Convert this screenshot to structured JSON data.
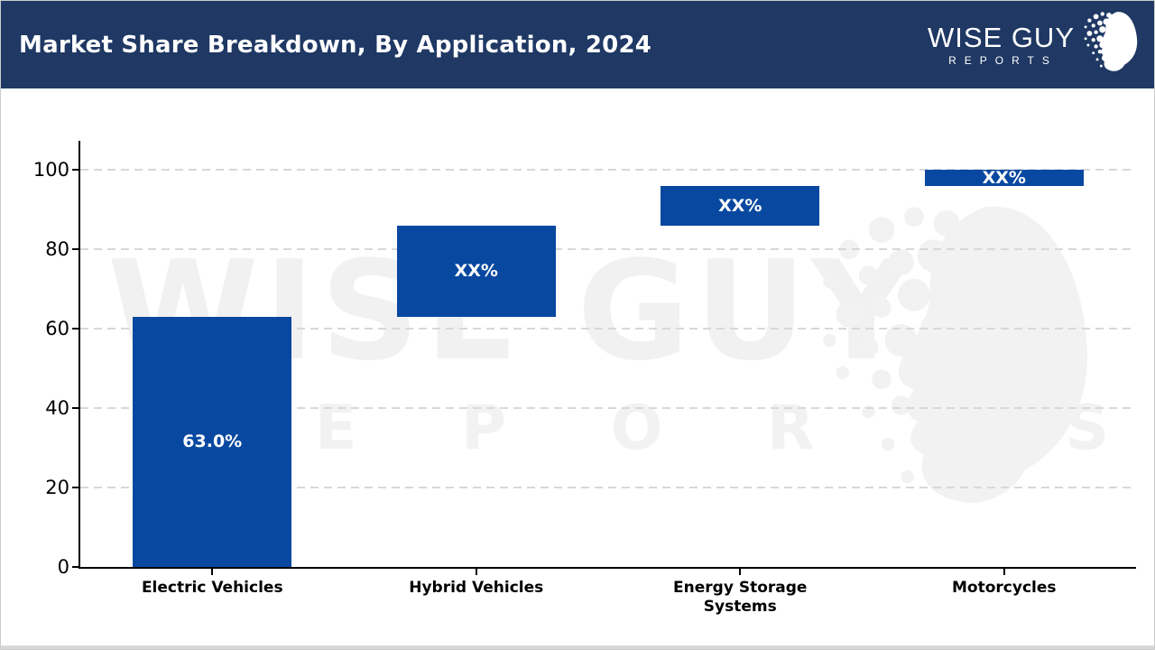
{
  "header": {
    "title": "Market Share Breakdown, By Application, 2024",
    "bg_color": "#1f3864",
    "logo": {
      "line1": "WISE GUY",
      "line2": "REPORTS"
    }
  },
  "watermark": {
    "line1": "WISE GUY",
    "line2": "R E P O R T S"
  },
  "chart_data": {
    "type": "bar",
    "subtype": "waterfall",
    "title": "Market Share Breakdown, By Application, 2024",
    "categories": [
      "Electric Vehicles",
      "Hybrid Vehicles",
      "Energy Storage\nSystems",
      "Motorcycles"
    ],
    "segments": [
      {
        "category": "Electric Vehicles",
        "start": 0,
        "end": 63,
        "size": 63.0,
        "label": "63.0%"
      },
      {
        "category": "Hybrid Vehicles",
        "start": 63,
        "end": 86,
        "size": 23.0,
        "label": "XX%"
      },
      {
        "category": "Energy Storage Systems",
        "start": 86,
        "end": 96,
        "size": 10.0,
        "label": "XX%"
      },
      {
        "category": "Motorcycles",
        "start": 96,
        "end": 100,
        "size": 4.0,
        "label": "XX%"
      }
    ],
    "xlabel": "",
    "ylabel": "",
    "ylim": [
      0,
      105
    ],
    "y_ticks": [
      0,
      20,
      40,
      60,
      80,
      100
    ],
    "grid": "horizontal-dashed",
    "legend": "none",
    "bar_color": "#0848a0",
    "gridline_color": "#d8d8d8",
    "value_label_color": "#ffffff"
  }
}
